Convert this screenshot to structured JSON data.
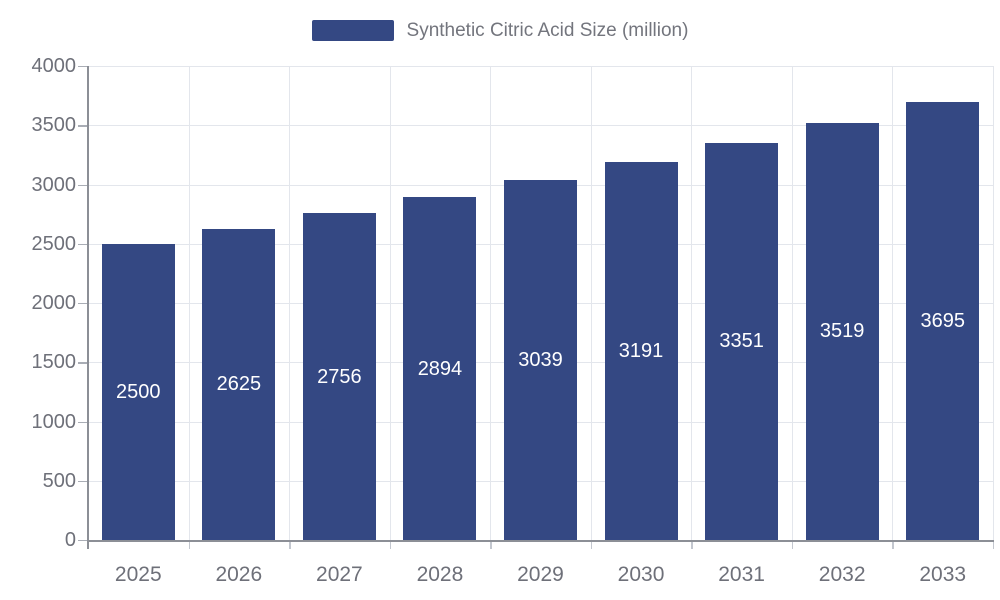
{
  "chart_data": {
    "type": "bar",
    "title": "Synthetic Citric Acid Size (million)",
    "categories": [
      "2025",
      "2026",
      "2027",
      "2028",
      "2029",
      "2030",
      "2031",
      "2032",
      "2033"
    ],
    "series": [
      {
        "name": "Synthetic Citric Acid Size (million)",
        "values": [
          2500,
          2625,
          2756,
          2894,
          3039,
          3191,
          3351,
          3519,
          3695
        ]
      }
    ],
    "xlabel": "",
    "ylabel": "",
    "ylim": [
      0,
      4000
    ],
    "y_ticks": [
      0,
      500,
      1000,
      1500,
      2000,
      2500,
      3000,
      3500,
      4000
    ],
    "grid": true,
    "legend_position": "top-center",
    "bar_labels_inside": true,
    "colors": {
      "bar": "#344883",
      "bar_label": "#ffffff",
      "axis_label": "#6e7079",
      "legend_text": "#73757d",
      "gridline": "#e3e6ec",
      "axis_line": "#8c8f96",
      "background": "#ffffff"
    }
  }
}
